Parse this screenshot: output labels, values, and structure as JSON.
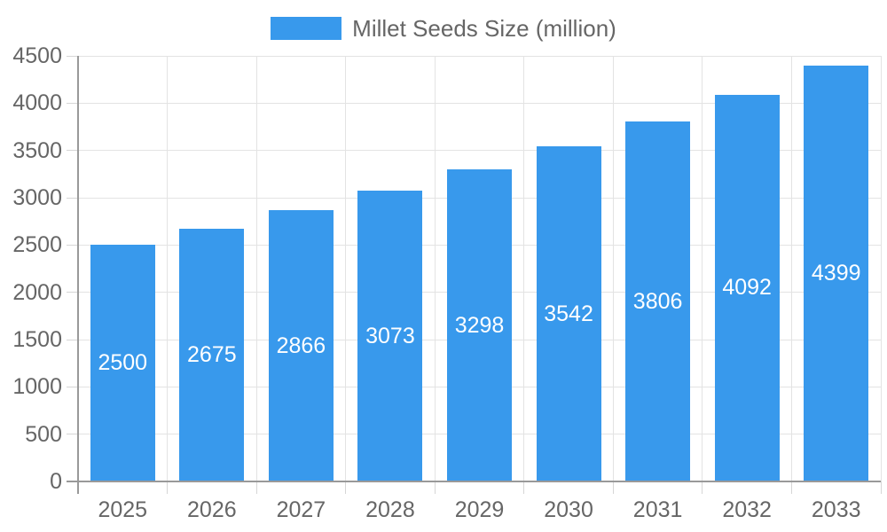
{
  "legend": {
    "label": "Millet Seeds Size (million)"
  },
  "chart_data": {
    "type": "bar",
    "title": "Millet Seeds Size (million)",
    "categories": [
      "2025",
      "2026",
      "2027",
      "2028",
      "2029",
      "2030",
      "2031",
      "2032",
      "2033"
    ],
    "values": [
      2500,
      2675,
      2866,
      3073,
      3298,
      3542,
      3806,
      4092,
      4399
    ],
    "xlabel": "",
    "ylabel": "",
    "ylim": [
      0,
      4500
    ],
    "ytick_step": 500,
    "yticks": [
      0,
      500,
      1000,
      1500,
      2000,
      2500,
      3000,
      3500,
      4000,
      4500
    ],
    "legend_position": "top",
    "grid": true,
    "value_label_position": "inside-center"
  },
  "colors": {
    "bar": "#3899EC",
    "axis_text": "#666666",
    "value_label_text": "#FFFFFF",
    "grid_line": "#E3E3E3",
    "axis_line": "#999999",
    "tick_line": "#D6D6D6",
    "background": "#FFFFFF"
  }
}
